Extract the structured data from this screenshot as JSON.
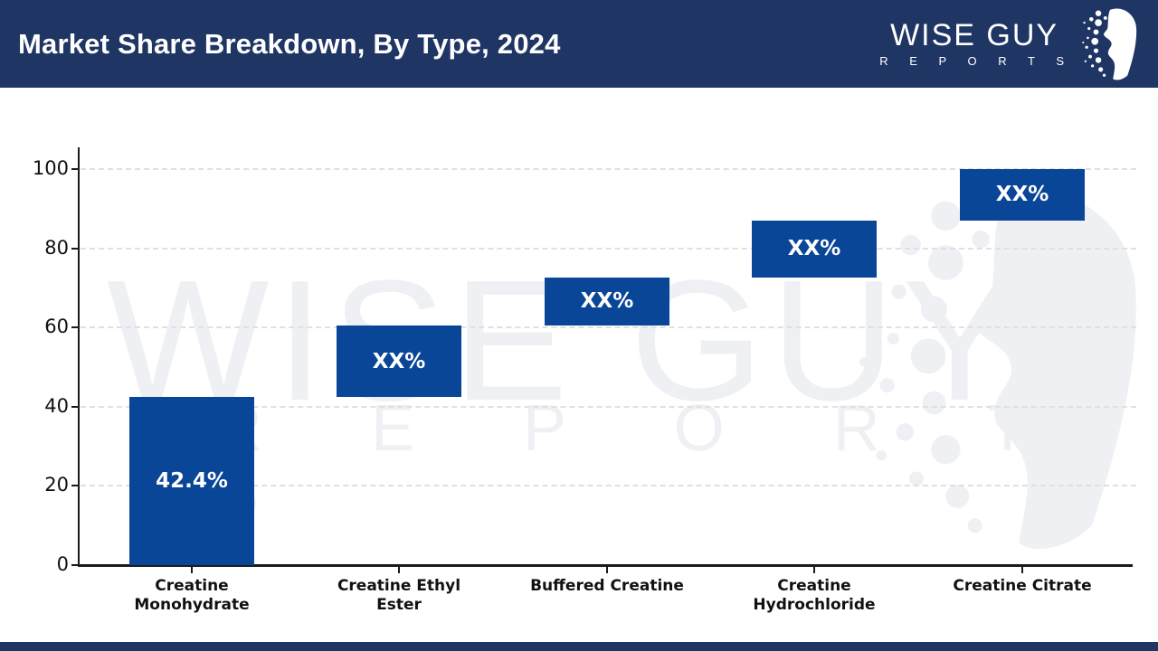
{
  "header": {
    "title": "Market Share Breakdown, By Type, 2024",
    "logo": {
      "line1": "WISE GUY",
      "line2": "R E P O R T S"
    }
  },
  "watermark": {
    "line1": "WISE GUY",
    "line2": "R E P O R T S"
  },
  "chart_data": {
    "type": "bar",
    "subtype": "waterfall",
    "title": "Market Share Breakdown, By Type, 2024",
    "categories": [
      "Creatine Monohydrate",
      "Creatine Ethyl Ester",
      "Buffered Creatine",
      "Creatine Hydrochloride",
      "Creatine Citrate"
    ],
    "segments": [
      {
        "label": "42.4%",
        "start": 0,
        "end": 42.4
      },
      {
        "label": "XX%",
        "start": 42.4,
        "end": 60.5
      },
      {
        "label": "XX%",
        "start": 60.5,
        "end": 72.7
      },
      {
        "label": "XX%",
        "start": 72.7,
        "end": 87.1
      },
      {
        "label": "XX%",
        "start": 87.1,
        "end": 100
      }
    ],
    "yticks": [
      0,
      20,
      40,
      60,
      80,
      100
    ],
    "ylim": [
      0,
      100
    ],
    "grid": "dashed horizontal",
    "bar_color": "#0A4698",
    "value_label_color": "#FFFFFF",
    "header_color": "#1F3564"
  }
}
